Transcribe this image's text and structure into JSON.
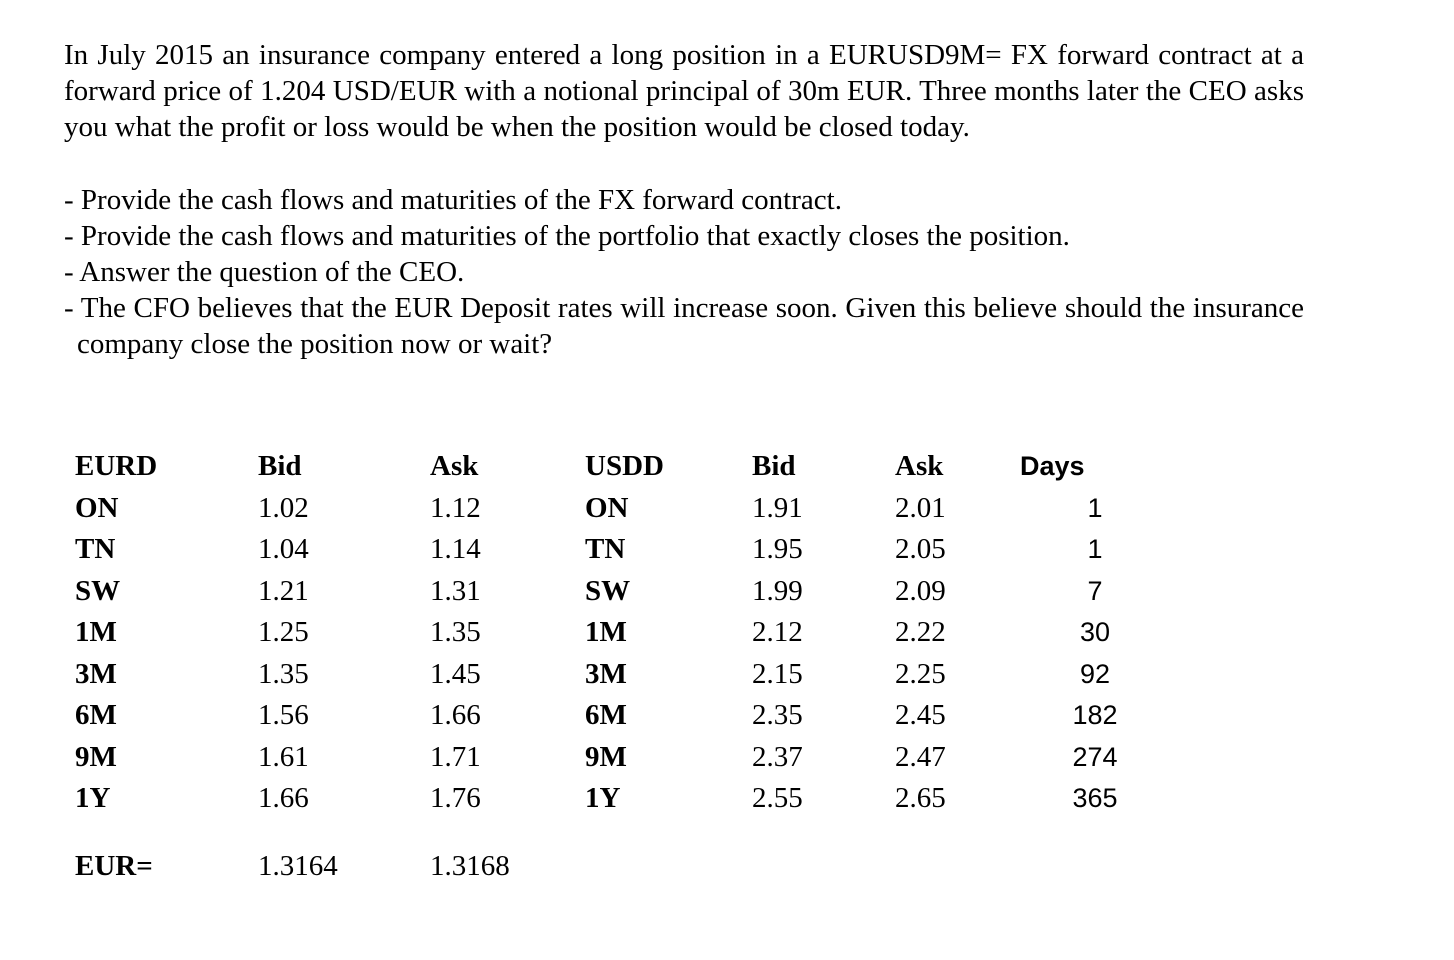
{
  "colors": {
    "background": "#ffffff",
    "text": "#000000"
  },
  "document": {
    "intro": "In July 2015 an insurance company entered a long position in a EURUSD9M= FX forward contract at a forward price of 1.204 USD/EUR with a notional principal of 30m EUR. Three months later the CEO asks you what the profit or loss would be when the position would be closed today.",
    "tasks": [
      "- Provide the cash flows and maturities of the FX forward contract.",
      "- Provide the cash flows and maturities of the portfolio that exactly closes the position.",
      "- Answer the question of the CEO.",
      "- The CFO believes that the EUR Deposit rates will increase soon. Given this believe should the insurance company close the position now or wait?"
    ]
  },
  "rates_table": {
    "headers": {
      "eur_tenor": "EURD",
      "eur_bid": "Bid",
      "eur_ask": "Ask",
      "usd_tenor": "USDD",
      "usd_bid": "Bid",
      "usd_ask": "Ask",
      "days": "Days"
    },
    "rows": [
      {
        "eur_tenor": "ON",
        "eur_bid": "1.02",
        "eur_ask": "1.12",
        "usd_tenor": "ON",
        "usd_bid": "1.91",
        "usd_ask": "2.01",
        "days": "1"
      },
      {
        "eur_tenor": "TN",
        "eur_bid": "1.04",
        "eur_ask": "1.14",
        "usd_tenor": "TN",
        "usd_bid": "1.95",
        "usd_ask": "2.05",
        "days": "1"
      },
      {
        "eur_tenor": "SW",
        "eur_bid": "1.21",
        "eur_ask": "1.31",
        "usd_tenor": "SW",
        "usd_bid": "1.99",
        "usd_ask": "2.09",
        "days": "7"
      },
      {
        "eur_tenor": "1M",
        "eur_bid": "1.25",
        "eur_ask": "1.35",
        "usd_tenor": "1M",
        "usd_bid": "2.12",
        "usd_ask": "2.22",
        "days": "30"
      },
      {
        "eur_tenor": "3M",
        "eur_bid": "1.35",
        "eur_ask": "1.45",
        "usd_tenor": "3M",
        "usd_bid": "2.15",
        "usd_ask": "2.25",
        "days": "92"
      },
      {
        "eur_tenor": "6M",
        "eur_bid": "1.56",
        "eur_ask": "1.66",
        "usd_tenor": "6M",
        "usd_bid": "2.35",
        "usd_ask": "2.45",
        "days": "182"
      },
      {
        "eur_tenor": "9M",
        "eur_bid": "1.61",
        "eur_ask": "1.71",
        "usd_tenor": "9M",
        "usd_bid": "2.37",
        "usd_ask": "2.47",
        "days": "274"
      },
      {
        "eur_tenor": "1Y",
        "eur_bid": "1.66",
        "eur_ask": "1.76",
        "usd_tenor": "1Y",
        "usd_bid": "2.55",
        "usd_ask": "2.65",
        "days": "365"
      }
    ]
  },
  "spot_row": {
    "label": "EUR=",
    "bid": "1.3164",
    "ask": "1.3168"
  }
}
